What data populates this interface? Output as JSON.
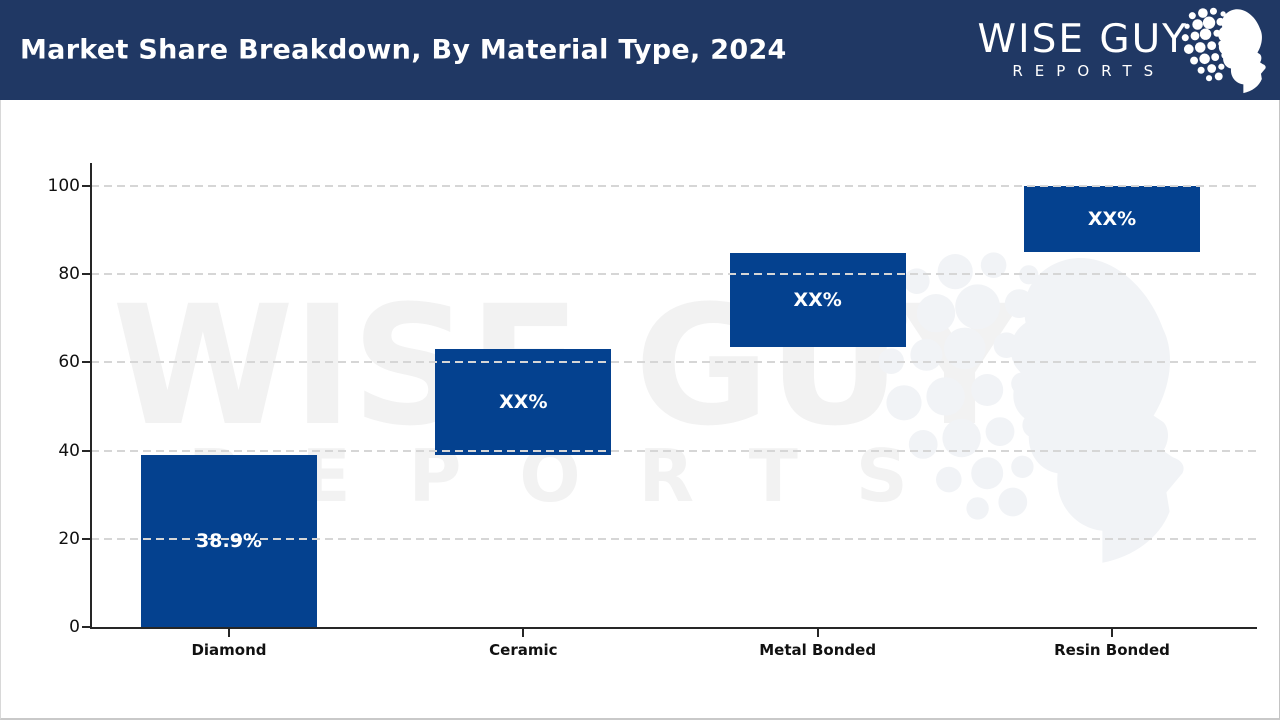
{
  "header": {
    "title": "Market Share Breakdown, By Material Type, 2024",
    "logo": {
      "line1": "WISE GUY",
      "line2": "REPORTS"
    }
  },
  "watermark": {
    "line1": "WISE GUY",
    "line2": "REPORTS"
  },
  "chart_data": {
    "type": "bar",
    "subtype": "floating-waterfall",
    "title": "Market Share Breakdown, By Material Type, 2024",
    "categories": [
      "Diamond",
      "Ceramic",
      "Metal Bonded",
      "Resin Bonded"
    ],
    "series": [
      {
        "name": "Market Share (%)",
        "segments": [
          {
            "category": "Diamond",
            "start": 0,
            "end": 38.9,
            "label": "38.9%"
          },
          {
            "category": "Ceramic",
            "start": 39.0,
            "end": 63.1,
            "label": "XX%"
          },
          {
            "category": "Metal Bonded",
            "start": 63.4,
            "end": 84.8,
            "label": "XX%"
          },
          {
            "category": "Resin Bonded",
            "start": 85.0,
            "end": 100.0,
            "label": "XX%"
          }
        ]
      }
    ],
    "xlabel": "",
    "ylabel": "",
    "yticks": [
      0,
      20,
      40,
      60,
      80,
      100
    ],
    "ylim": [
      0,
      105
    ],
    "grid": "dashed-horizontal",
    "legend": "none"
  },
  "colors": {
    "header_bg": "#203864",
    "bar": "#04418f",
    "bar_label": "#ffffff",
    "grid": "#d6d6d6",
    "axis": "#262626",
    "tick_text": "#111111",
    "watermark": "#f2f2f2",
    "watermark_face": "#f1f3f6"
  }
}
